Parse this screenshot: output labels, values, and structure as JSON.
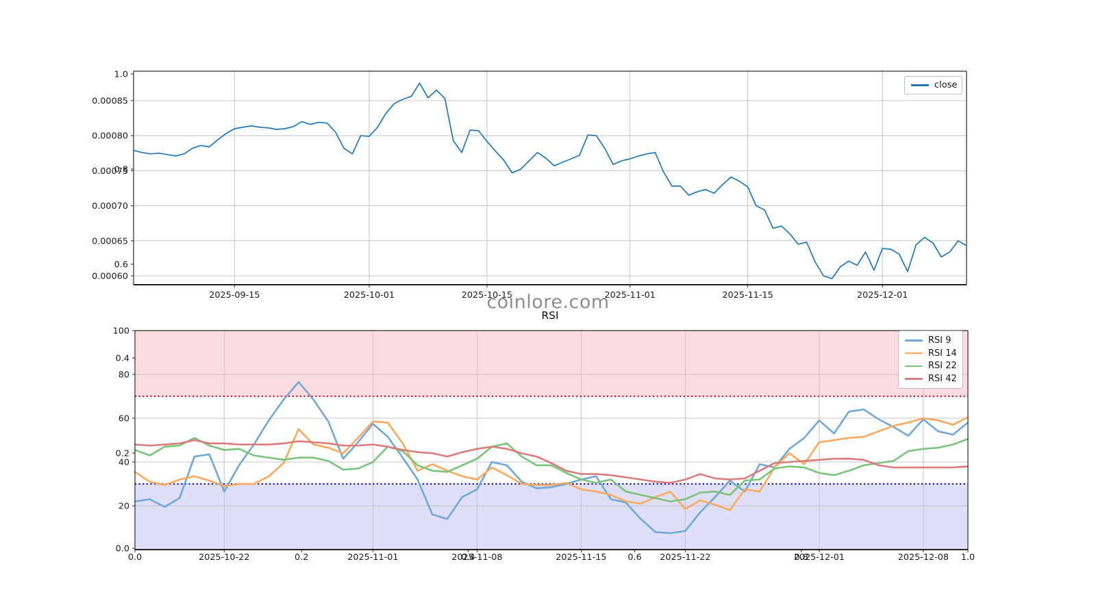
{
  "watermark": "coinlore.com",
  "chart_data": [
    {
      "type": "line",
      "title": "",
      "legend_position": "upper right",
      "grid": true,
      "ylim": [
        0.000594,
        0.000896
      ],
      "yticks": {
        "values": [
          0.0006,
          0.00065,
          0.0007,
          0.00075,
          0.0008,
          0.00085
        ],
        "labels": [
          "0.00060",
          "0.00065",
          "0.00070",
          "0.00075",
          "0.00080",
          "0.00085"
        ]
      },
      "yticks_secondary_labels": [
        "1.0",
        "0.8",
        "0.6"
      ],
      "xticks": {
        "indices": [
          12,
          28,
          42,
          59,
          73,
          89
        ],
        "labels": [
          "2025-09-15",
          "2025-10-01",
          "2025-10-15",
          "2025-11-01",
          "2025-11-15",
          "2025-12-01"
        ]
      },
      "x_range": [
        "2025-09-03",
        "2025-12-11"
      ],
      "series": [
        {
          "name": "close",
          "color": "#1f77b4",
          "values": [
            0.000779,
            0.000776,
            0.000774,
            0.000775,
            0.000773,
            0.000771,
            0.000774,
            0.000782,
            0.000786,
            0.000784,
            0.000794,
            0.000803,
            0.00081,
            0.000812,
            0.000814,
            0.000812,
            0.000811,
            0.000809,
            0.00081,
            0.000813,
            0.00082,
            0.000816,
            0.000819,
            0.000818,
            0.000805,
            0.000782,
            0.000774,
            0.0008,
            0.000799,
            0.000812,
            0.000832,
            0.000846,
            0.000852,
            0.000856,
            0.000875,
            0.000854,
            0.000865,
            0.000853,
            0.000793,
            0.000776,
            0.000808,
            0.000807,
            0.000792,
            0.000778,
            0.000765,
            0.000747,
            0.000752,
            0.000764,
            0.000776,
            0.000768,
            0.000757,
            0.000762,
            0.000767,
            0.000772,
            0.000801,
            0.0008,
            0.000782,
            0.000759,
            0.000764,
            0.000767,
            0.000771,
            0.000774,
            0.000776,
            0.000748,
            0.000728,
            0.000728,
            0.000715,
            0.00072,
            0.000723,
            0.000718,
            0.00073,
            0.000741,
            0.000735,
            0.000727,
            0.0007,
            0.000694,
            0.000668,
            0.000671,
            0.00066,
            0.000645,
            0.000648,
            0.00062,
            0.0006,
            0.000596,
            0.000613,
            0.000621,
            0.000615,
            0.000634,
            0.000608,
            0.000639,
            0.000638,
            0.000631,
            0.000606,
            0.000644,
            0.000655,
            0.000647,
            0.000627,
            0.000634,
            0.00065,
            0.000643
          ]
        }
      ]
    },
    {
      "type": "line",
      "title": "RSI",
      "legend_position": "upper right",
      "grid": true,
      "ylim": [
        0,
        100
      ],
      "yticks": {
        "values": [
          20,
          40,
          60,
          80,
          100
        ],
        "labels": [
          "20",
          "40",
          "60",
          "80",
          "100"
        ]
      },
      "yticks_secondary_labels": [
        "0.4",
        "0.2",
        "0.0"
      ],
      "xticks": {
        "indices": [
          6,
          16,
          23,
          30,
          37,
          46,
          53
        ],
        "labels": [
          "2025-10-22",
          "2025-11-01",
          "2025-11-08",
          "2025-11-15",
          "2025-11-22",
          "2025-12-01",
          "2025-12-08"
        ]
      },
      "xticks_secondary": {
        "fractions": [
          0,
          0.2,
          0.4,
          0.6,
          0.8,
          1.0
        ],
        "labels": [
          "0.0",
          "0.2",
          "0.4",
          "0.6",
          "0.8",
          "1.0"
        ]
      },
      "x_range": [
        "2025-10-16",
        "2025-12-11"
      ],
      "bands": [
        {
          "name": "overbought-zone",
          "from": 70,
          "to": 100,
          "color": "#fbdce1"
        },
        {
          "name": "oversold-zone",
          "from": 0,
          "to": 30,
          "color": "#dfdff7"
        }
      ],
      "threshold_lines": [
        {
          "name": "overbought-line",
          "y": 70,
          "color": "#dc1430"
        },
        {
          "name": "oversold-line",
          "y": 30,
          "color": "#1414b4"
        }
      ],
      "series": [
        {
          "name": "RSI 9",
          "color": "#6fa8d6",
          "values": [
            22,
            23,
            19.5,
            23.5,
            42.5,
            43.5,
            26.5,
            38.5,
            48,
            59,
            68.5,
            76.5,
            68.5,
            58.5,
            41.5,
            49,
            57.5,
            51.5,
            42,
            32,
            16,
            14,
            24,
            27.5,
            40,
            38.5,
            31,
            28,
            28.5,
            30,
            32,
            33.5,
            23,
            21.5,
            14,
            8,
            7.5,
            8.5,
            17,
            24,
            31.5,
            26.5,
            39,
            37.5,
            46,
            51,
            59,
            53,
            63,
            64,
            59.5,
            56,
            52,
            59.5,
            54,
            52.5,
            58
          ]
        },
        {
          "name": "RSI 14",
          "color": "#ffa85c",
          "values": [
            35.5,
            31,
            29.5,
            32,
            33.5,
            31.5,
            29,
            30,
            30,
            33.5,
            39.5,
            55,
            48,
            46.5,
            44,
            51,
            58.5,
            58,
            48.5,
            36,
            39,
            36,
            33.5,
            32,
            37.5,
            34,
            30,
            29.5,
            29.5,
            30.5,
            27.5,
            26.5,
            25,
            22,
            21,
            24,
            26.5,
            18.5,
            22.5,
            20.5,
            18,
            27.5,
            26.5,
            37.5,
            44,
            39,
            49,
            50,
            51,
            51.5,
            54,
            56.5,
            58,
            60,
            59,
            57,
            60.5
          ]
        },
        {
          "name": "RSI 22",
          "color": "#7ac47a",
          "values": [
            45.5,
            43,
            47,
            47.5,
            51,
            47.5,
            45.5,
            46,
            43,
            42,
            41,
            42,
            42,
            40.5,
            36.5,
            37,
            40,
            47,
            45,
            38.5,
            36,
            35.5,
            38.5,
            41.5,
            47,
            48.5,
            42.5,
            38.5,
            38.5,
            35,
            32,
            30.5,
            32,
            26.5,
            25,
            23.5,
            22,
            23,
            26,
            26.5,
            25,
            31.5,
            32,
            37,
            38,
            37.5,
            35,
            34,
            36,
            38.5,
            39.5,
            40.5,
            45,
            46,
            46.5,
            48,
            50.5
          ]
        },
        {
          "name": "RSI 42",
          "color": "#db7b7d",
          "values": [
            48,
            47.5,
            48,
            48.5,
            50,
            48.5,
            48.5,
            48,
            48,
            48,
            48.5,
            49.5,
            49,
            48.5,
            47.5,
            47.5,
            48,
            47,
            45.5,
            44.5,
            44,
            42.5,
            44.5,
            46,
            47,
            46,
            44,
            42.5,
            39.5,
            36,
            34.5,
            34.5,
            34,
            33,
            32,
            31,
            30.5,
            32,
            34.5,
            32.5,
            32,
            32.5,
            36,
            39.5,
            40,
            40.5,
            41,
            41.5,
            41.5,
            41,
            38.5,
            37.5,
            37.5,
            37.5,
            37.5,
            37.5,
            38
          ]
        }
      ]
    }
  ]
}
